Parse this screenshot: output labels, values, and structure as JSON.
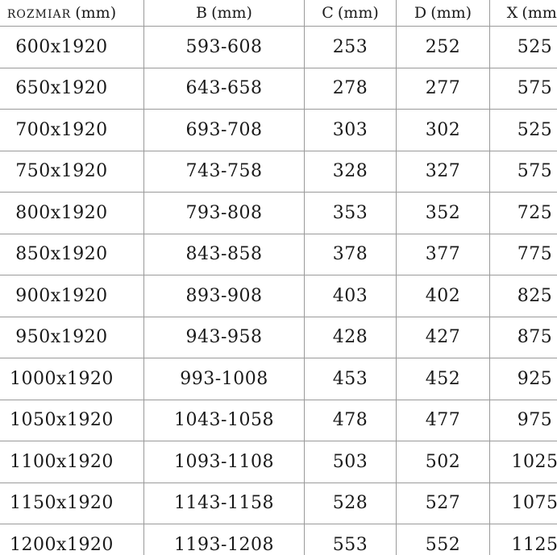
{
  "chart_data": {
    "type": "table",
    "columns": [
      {
        "label": "ROZMIAR",
        "unit": "(mm)"
      },
      {
        "label": "B",
        "unit": "(mm)"
      },
      {
        "label": "C",
        "unit": "(mm)"
      },
      {
        "label": "D",
        "unit": "(mm)"
      },
      {
        "label": "X",
        "unit": "(mm)"
      }
    ],
    "rows": [
      [
        "600x1920",
        "593-608",
        "253",
        "252",
        "525"
      ],
      [
        "650x1920",
        "643-658",
        "278",
        "277",
        "575"
      ],
      [
        "700x1920",
        "693-708",
        "303",
        "302",
        "525"
      ],
      [
        "750x1920",
        "743-758",
        "328",
        "327",
        "575"
      ],
      [
        "800x1920",
        "793-808",
        "353",
        "352",
        "725"
      ],
      [
        "850x1920",
        "843-858",
        "378",
        "377",
        "775"
      ],
      [
        "900x1920",
        "893-908",
        "403",
        "402",
        "825"
      ],
      [
        "950x1920",
        "943-958",
        "428",
        "427",
        "875"
      ],
      [
        "1000x1920",
        "993-1008",
        "453",
        "452",
        "925"
      ],
      [
        "1050x1920",
        "1043-1058",
        "478",
        "477",
        "975"
      ],
      [
        "1100x1920",
        "1093-1108",
        "503",
        "502",
        "1025"
      ],
      [
        "1150x1920",
        "1143-1158",
        "528",
        "527",
        "1075"
      ],
      [
        "1200x1920",
        "1193-1208",
        "553",
        "552",
        "1125"
      ]
    ],
    "layout": {
      "grid": true,
      "legend": "none",
      "note": "table cropped at top-left and right/bottom edges"
    },
    "colors": {
      "grid": "#9a9a9a",
      "text": "#1a1a1a",
      "background": "#ffffff"
    }
  }
}
